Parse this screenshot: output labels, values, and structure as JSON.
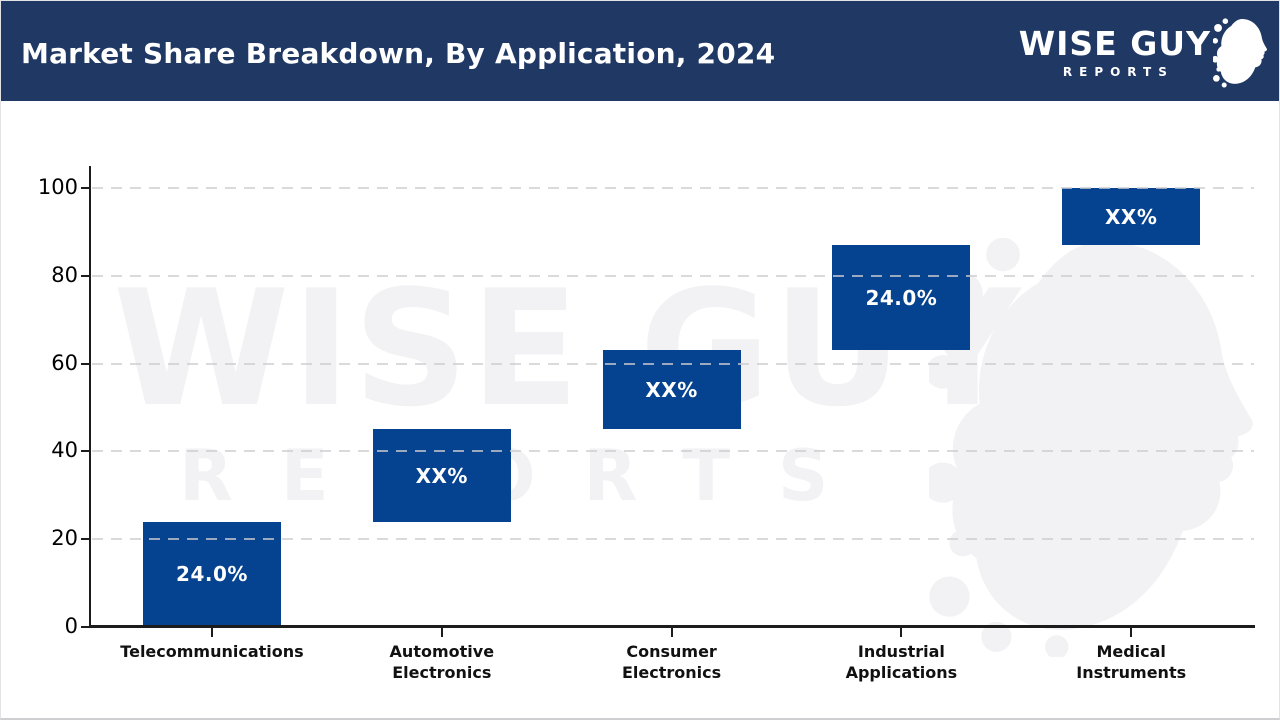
{
  "header": {
    "title": "Market Share Breakdown, By Application, 2024",
    "logo": {
      "line1": "WISE GUY",
      "line2": "REPORTS"
    }
  },
  "watermark": {
    "line1": "WISE GUY",
    "line2": "REPORTS"
  },
  "colors": {
    "header_bg": "#1f3864",
    "bar": "#05428f",
    "grid": "#d6d6d8",
    "axis": "#1c1c1c",
    "watermark": "#f2f2f4"
  },
  "chart_data": {
    "type": "bar",
    "subtype": "waterfall-floating-bars",
    "title": "Market Share Breakdown, By Application, 2024",
    "xlabel": "",
    "ylabel": "",
    "ylim": [
      0,
      100
    ],
    "yticks": [
      0,
      20,
      40,
      60,
      80,
      100
    ],
    "grid": "horizontal-dashed",
    "legend": "none",
    "bar_color": "#05428f",
    "categories": [
      "Telecommunications",
      "Automotive Electronics",
      "Consumer Electronics",
      "Industrial Applications",
      "Medical Instruments"
    ],
    "series": [
      {
        "name": "Market Share",
        "segments": [
          {
            "category": "Telecommunications",
            "start": 0,
            "end": 24,
            "value": 24,
            "label": "24.0%"
          },
          {
            "category": "Automotive Electronics",
            "start": 24,
            "end": 45,
            "value": 21,
            "label": "XX%"
          },
          {
            "category": "Consumer Electronics",
            "start": 45,
            "end": 63,
            "value": 18,
            "label": "XX%"
          },
          {
            "category": "Industrial Applications",
            "start": 63,
            "end": 87,
            "value": 24,
            "label": "24.0%"
          },
          {
            "category": "Medical Instruments",
            "start": 87,
            "end": 100,
            "value": 13,
            "label": "XX%"
          }
        ]
      }
    ]
  }
}
